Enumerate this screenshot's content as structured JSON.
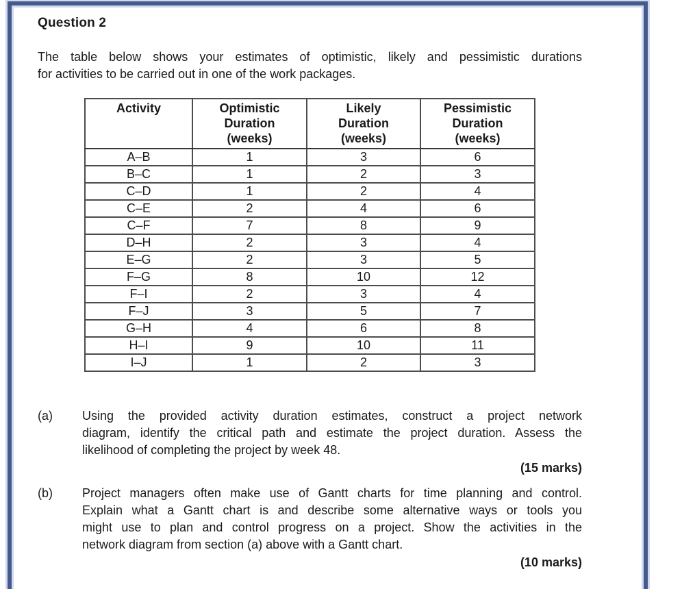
{
  "question": {
    "title": "Question 2"
  },
  "intro": {
    "lines": [
      "The table below shows your estimates of optimistic, likely and pessimistic durations",
      "for activities to be carried out in one of the work packages."
    ]
  },
  "table": {
    "headers": [
      "Activity",
      "Optimistic\nDuration\n(weeks)",
      "Likely\nDuration\n(weeks)",
      "Pessimistic\nDuration\n(weeks)"
    ],
    "rows": [
      [
        "A–B",
        "1",
        "3",
        "6"
      ],
      [
        "B–C",
        "1",
        "2",
        "3"
      ],
      [
        "C–D",
        "1",
        "2",
        "4"
      ],
      [
        "C–E",
        "2",
        "4",
        "6"
      ],
      [
        "C–F",
        "7",
        "8",
        "9"
      ],
      [
        "D–H",
        "2",
        "3",
        "4"
      ],
      [
        "E–G",
        "2",
        "3",
        "5"
      ],
      [
        "F–G",
        "8",
        "10",
        "12"
      ],
      [
        "F–I",
        "2",
        "3",
        "4"
      ],
      [
        "F–J",
        "3",
        "5",
        "7"
      ],
      [
        "G–H",
        "4",
        "6",
        "8"
      ],
      [
        "H–I",
        "9",
        "10",
        "11"
      ],
      [
        "I–J",
        "1",
        "2",
        "3"
      ]
    ]
  },
  "sections": [
    {
      "label": "(a)",
      "lines": [
        "Using the provided activity duration estimates, construct a project network",
        "diagram, identify the critical path and estimate the project duration. Assess the",
        "likelihood of completing the project by week 48."
      ],
      "marks": "(15 marks)"
    },
    {
      "label": "(b)",
      "lines": [
        "Project managers often make use of Gantt charts for time planning and control.",
        "Explain what a Gantt chart is and describe some alternative ways or tools you",
        "might use to plan and control progress on a project. Show the activities in the",
        "network diagram from section (a) above with a Gantt chart."
      ],
      "marks": "(10 marks)"
    }
  ],
  "colors": {
    "frame_navy": "#46598b",
    "frame_halo": "#cfdaef",
    "table_border": "#4c4c4c"
  }
}
